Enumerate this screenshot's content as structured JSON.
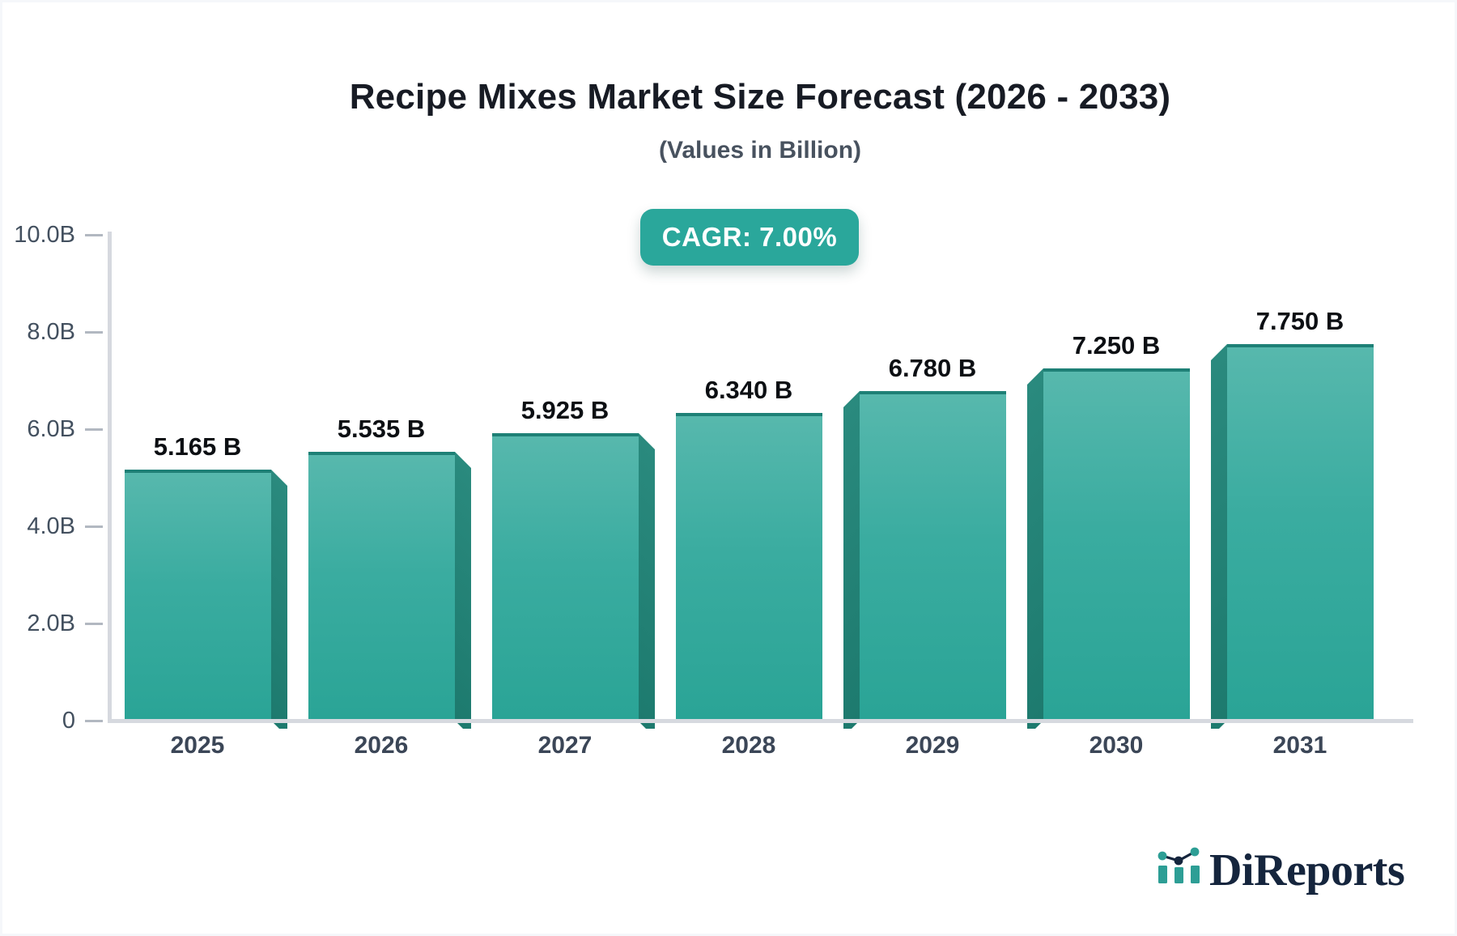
{
  "header": {
    "title": "Recipe Mixes Market Size Forecast (2026 - 2033)",
    "subtitle": "(Values in Billion)",
    "cagr_label": "CAGR: 7.00%"
  },
  "chart_data": {
    "type": "bar",
    "title": "Recipe Mixes Market Size Forecast (2026 - 2033)",
    "subtitle": "(Values in Billion)",
    "unit": "Billion",
    "cagr_percent": 7.0,
    "categories": [
      "2025",
      "2026",
      "2027",
      "2028",
      "2029",
      "2030",
      "2031"
    ],
    "values": [
      5.165,
      5.535,
      5.925,
      6.34,
      6.78,
      7.25,
      7.75
    ],
    "value_labels": [
      "5.165 B",
      "5.535 B",
      "5.925 B",
      "6.340 B",
      "6.780 B",
      "7.250 B",
      "7.750 B"
    ],
    "ylabel": "",
    "xlabel": "",
    "ylim": [
      0,
      10
    ],
    "y_tick_labels": [
      "10.0B",
      "8.0B",
      "6.0B",
      "4.0B",
      "2.0B",
      "0"
    ],
    "y_tick_values": [
      10,
      8,
      6,
      4,
      2,
      0
    ],
    "grid": false,
    "legend": "none",
    "style": "3d-extruded-bars-facing-center"
  },
  "colors": {
    "bar_top": "#57b8ad",
    "bar_bottom": "#2aa496",
    "bar_edge": "#1e8076",
    "bar_side": "#1d7a6e",
    "badge_bg": "#2aa79b",
    "axis_line": "#d6d9df",
    "tick": "#b2b8c1",
    "title_text": "#171b24",
    "subtitle_text": "#48525f",
    "logo_navy": "#15253d",
    "logo_teal": "#2d9e95"
  },
  "branding": {
    "logo_text": "DiReports",
    "logo_icon": "mini-bar-chart-with-trend-dots-icon"
  }
}
